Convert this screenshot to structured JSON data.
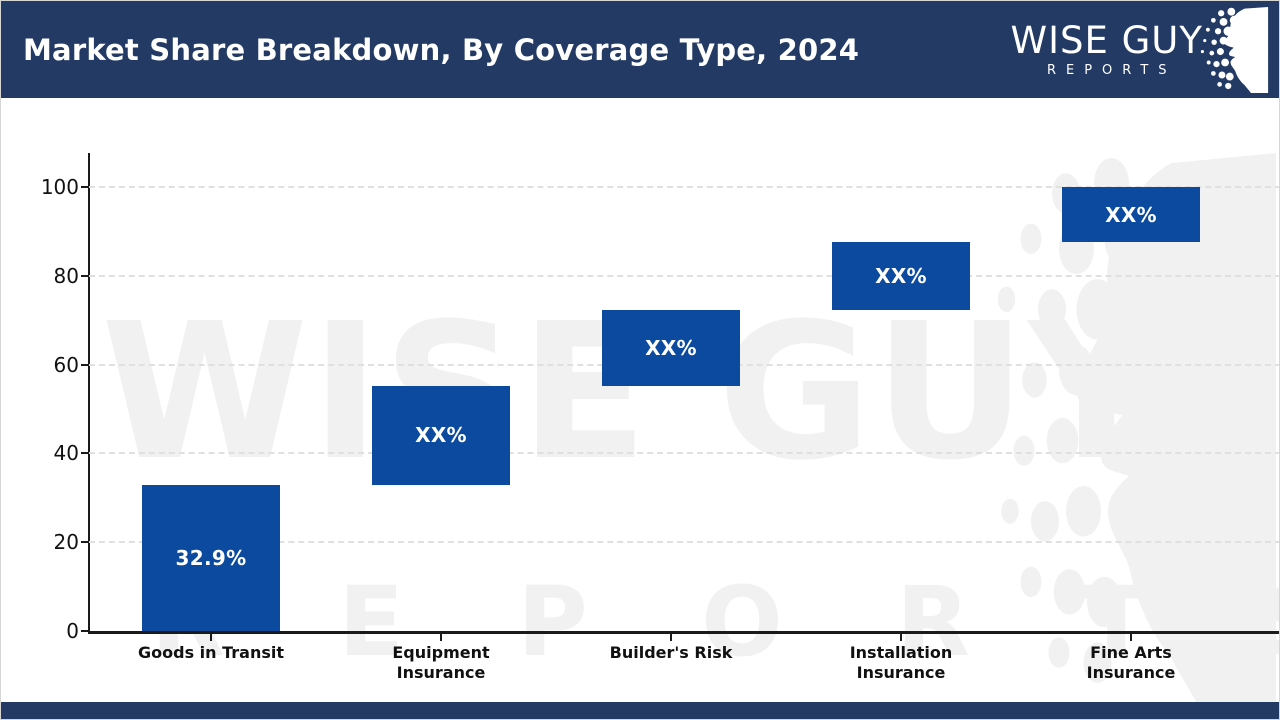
{
  "header": {
    "title": "Market Share Breakdown, By Coverage Type, 2024",
    "logo_line1": "WISE GUY",
    "logo_line2": "REPORTS"
  },
  "watermark": {
    "line1": "WISE GUY",
    "line2": "R E P O R T S"
  },
  "colors": {
    "header_bg": "#233A64",
    "footer_bg": "#233A64",
    "bar": "#0B4A9E",
    "bar_label": "#FFFFFF",
    "axis": "#1A1A1A",
    "gridline": "#E0E0E0",
    "watermark": "#F1F1F1",
    "background": "#FFFFFF"
  },
  "chart_data": {
    "type": "bar",
    "subtype": "waterfall-breakdown",
    "title": "Market Share Breakdown, By Coverage Type, 2024",
    "categories": [
      "Goods in Transit",
      "Equipment Insurance",
      "Builder's Risk",
      "Installation Insurance",
      "Fine Arts Insurance"
    ],
    "category_lines": [
      [
        "Goods in Transit"
      ],
      [
        "Equipment",
        "Insurance"
      ],
      [
        "Builder's Risk"
      ],
      [
        "Installation",
        "Insurance"
      ],
      [
        "Fine Arts",
        "Insurance"
      ]
    ],
    "segments": [
      {
        "category": "Goods in Transit",
        "from": 0,
        "to": 32.9,
        "label": "32.9%"
      },
      {
        "category": "Equipment Insurance",
        "from": 32.9,
        "to": 55.2,
        "label": "XX%"
      },
      {
        "category": "Builder's Risk",
        "from": 55.2,
        "to": 72.4,
        "label": "XX%"
      },
      {
        "category": "Installation Insurance",
        "from": 72.4,
        "to": 87.6,
        "label": "XX%"
      },
      {
        "category": "Fine Arts Insurance",
        "from": 87.6,
        "to": 100,
        "label": "XX%"
      }
    ],
    "yticks": [
      0,
      20,
      40,
      60,
      80,
      100
    ],
    "ylim": [
      0,
      100
    ],
    "grid": "horizontal-dashed",
    "legend": "none",
    "xlabel": "",
    "ylabel": ""
  }
}
